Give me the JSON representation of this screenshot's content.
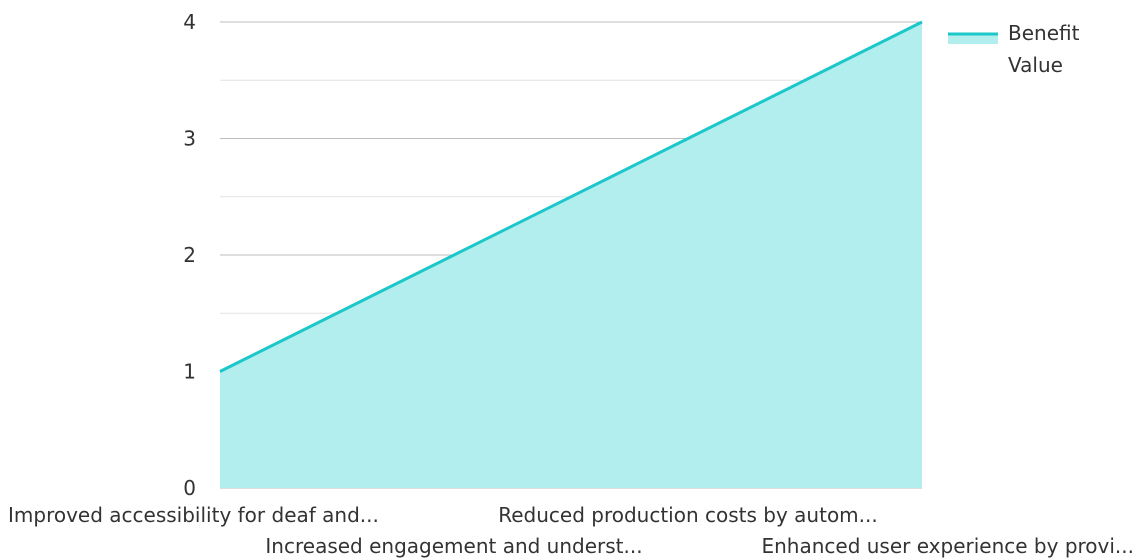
{
  "chart_data": {
    "type": "area",
    "categories": [
      "Improved accessibility for deaf and...",
      "Increased engagement and underst...",
      "Reduced production costs by autom...",
      "Enhanced user experience by provi..."
    ],
    "series": [
      {
        "name": "Benefit Value",
        "values": [
          1,
          2,
          3,
          4
        ]
      }
    ],
    "ylim": [
      0,
      4
    ],
    "yticks": [
      "0",
      "1",
      "2",
      "3",
      "4"
    ],
    "legend": {
      "position": "top-right",
      "labels": [
        "Benefit",
        "Value"
      ]
    },
    "grid": true,
    "colors": {
      "line": "#1cc7c9",
      "fill": "#b2eeee",
      "grid_major": "#bdbdbd",
      "grid_minor": "#e3e3e3",
      "text": "#333333"
    }
  }
}
